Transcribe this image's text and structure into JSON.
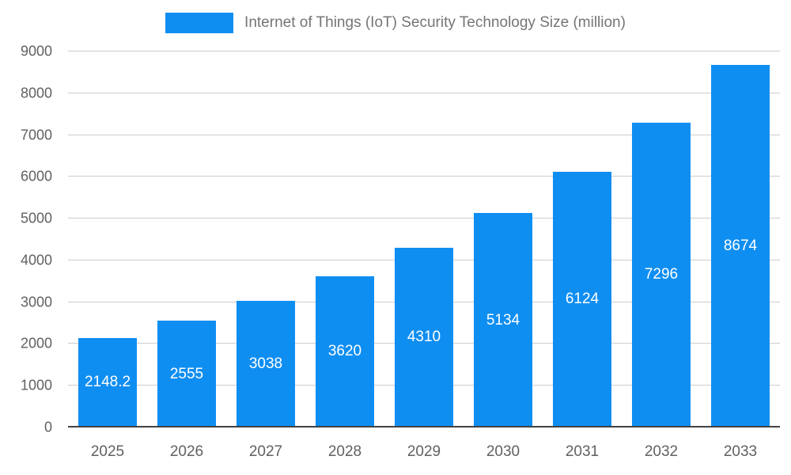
{
  "legend": {
    "label": "Internet of Things (IoT) Security Technology Size (million)"
  },
  "chart_data": {
    "type": "bar",
    "title": "Internet of Things (IoT) Security Technology Size (million)",
    "categories": [
      "2025",
      "2026",
      "2027",
      "2028",
      "2029",
      "2030",
      "2031",
      "2032",
      "2033"
    ],
    "values": [
      2148.2,
      2555,
      3038,
      3620,
      4310,
      5134,
      6124,
      7296,
      8674
    ],
    "xlabel": "",
    "ylabel": "",
    "ylim": [
      0,
      9000
    ],
    "ytick_step": 1000,
    "ytick_labels": [
      "0",
      "1000",
      "2000",
      "3000",
      "4000",
      "5000",
      "6000",
      "7000",
      "8000",
      "9000"
    ],
    "grid": true,
    "legend_position": "top",
    "bar_color": "#0f8ef2",
    "value_label_color": "#ffffff",
    "axis_label_color": "#616161",
    "gridline_color": "#cccccc",
    "title_color": "#757575"
  }
}
